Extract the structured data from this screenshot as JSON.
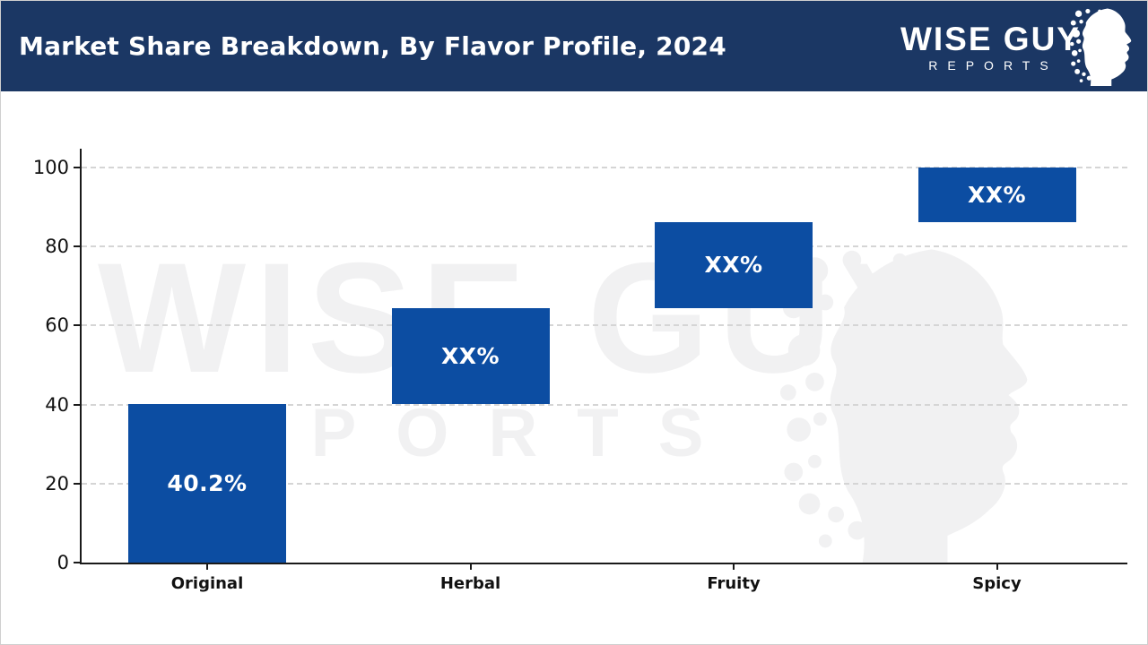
{
  "page": {
    "title": "Market Share Breakdown, By Flavor Profile, 2024"
  },
  "logo": {
    "line1": "WISE GUY",
    "line2": "REPORTS"
  },
  "watermark": {
    "line1": "WISE GUY",
    "line2": "REPORTS"
  },
  "chart_data": {
    "type": "bar",
    "subtype": "waterfall",
    "title": "Market Share Breakdown, By Flavor Profile, 2024",
    "categories": [
      "Original",
      "Herbal",
      "Fruity",
      "Spicy"
    ],
    "segments": [
      {
        "category": "Original",
        "start": 0,
        "end": 40.2,
        "label": "40.2%"
      },
      {
        "category": "Herbal",
        "start": 40.2,
        "end": 64.5,
        "label": "XX%"
      },
      {
        "category": "Fruity",
        "start": 64.5,
        "end": 86.2,
        "label": "XX%"
      },
      {
        "category": "Spicy",
        "start": 86.2,
        "end": 100,
        "label": "XX%"
      }
    ],
    "yticks": [
      0,
      20,
      40,
      60,
      80,
      100
    ],
    "ylim": [
      0,
      100
    ],
    "xlabel": "",
    "ylabel": "",
    "grid": "horizontal-dashed",
    "legend": "none",
    "bar_color": "#0c4da2",
    "bar_label_color": "#ffffff"
  },
  "colors": {
    "header_bg": "#1b3764",
    "bar": "#0c4da2",
    "watermark": "#f1f1f2",
    "gridline": "#d5d5d5",
    "axis": "#1a1a1a"
  }
}
